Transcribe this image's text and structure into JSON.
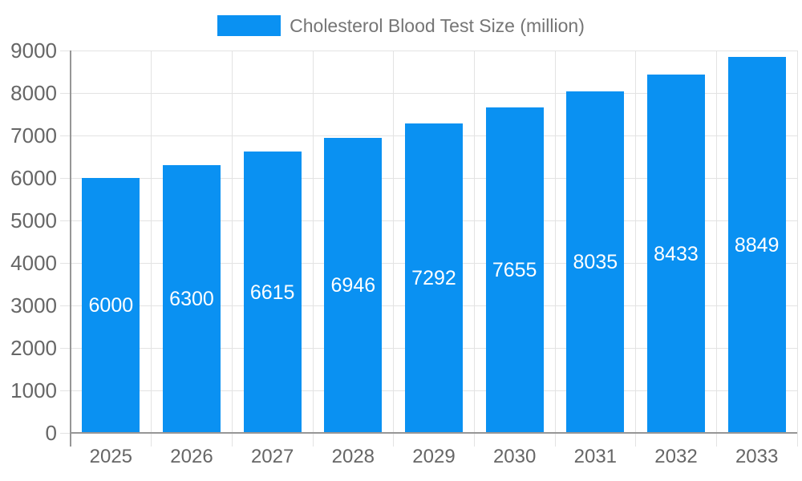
{
  "legend": {
    "label": "Cholesterol Blood Test Size (million)",
    "position": "top"
  },
  "chart_data": {
    "type": "bar",
    "title": "Cholesterol Blood Test Size (million)",
    "categories": [
      "2025",
      "2026",
      "2027",
      "2028",
      "2029",
      "2030",
      "2031",
      "2032",
      "2033"
    ],
    "values": [
      6000,
      6300,
      6615,
      6946,
      7292,
      7655,
      8035,
      8433,
      8849
    ],
    "bar_labels": [
      "6000",
      "6300",
      "6615",
      "6946",
      "7292",
      "7655",
      "8035",
      "8433",
      "8849"
    ],
    "xlabel": "",
    "ylabel": "",
    "ylim": [
      0,
      9000
    ],
    "ytick_step": 1000,
    "ytick_labels": [
      "0",
      "1000",
      "2000",
      "3000",
      "4000",
      "5000",
      "6000",
      "7000",
      "8000",
      "9000"
    ],
    "grid": true,
    "legend_position": "top"
  },
  "style": {
    "bar_color": "#0A91F2",
    "bar_label_color": "#ffffff",
    "grid_color": "#e3e3e3",
    "tick_color": "#e3e3e3",
    "axis_line_color": "#969696",
    "axis_label_color": "#666666",
    "legend_text_color": "#757575",
    "background_color": "#ffffff"
  }
}
